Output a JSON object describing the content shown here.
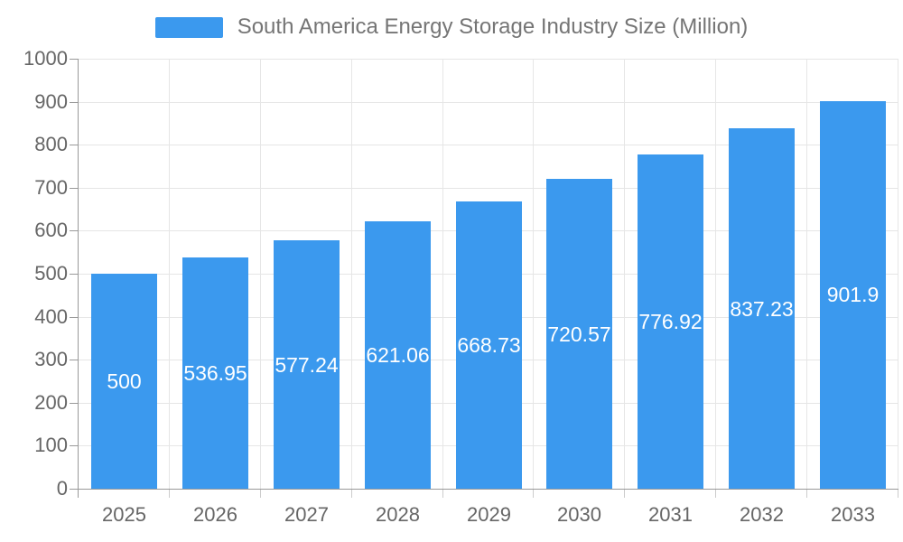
{
  "chart_data": {
    "type": "bar",
    "title": "South America Energy Storage Industry Size (Million)",
    "categories": [
      "2025",
      "2026",
      "2027",
      "2028",
      "2029",
      "2030",
      "2031",
      "2032",
      "2033"
    ],
    "values": [
      500,
      536.95,
      577.24,
      621.06,
      668.73,
      720.57,
      776.92,
      837.23,
      901.9
    ],
    "value_labels": [
      "500",
      "536.95",
      "577.24",
      "621.06",
      "668.73",
      "720.57",
      "776.92",
      "837.23",
      "901.9"
    ],
    "xlabel": "",
    "ylabel": "",
    "ylim": [
      0,
      1000
    ],
    "yticks": [
      0,
      100,
      200,
      300,
      400,
      500,
      600,
      700,
      800,
      900,
      1000
    ],
    "grid": true,
    "legend_position": "top",
    "legend_label": "South America Energy Storage Industry Size (Million)",
    "colors": {
      "bar": "#3B99EE",
      "bar_value_text": "#ffffff",
      "grid": "#e6e6e6",
      "axis": "#999999",
      "x_boundary_tick": "#cccccc",
      "tick_text": "#666666",
      "legend_text": "#757575",
      "background": "#ffffff"
    }
  }
}
